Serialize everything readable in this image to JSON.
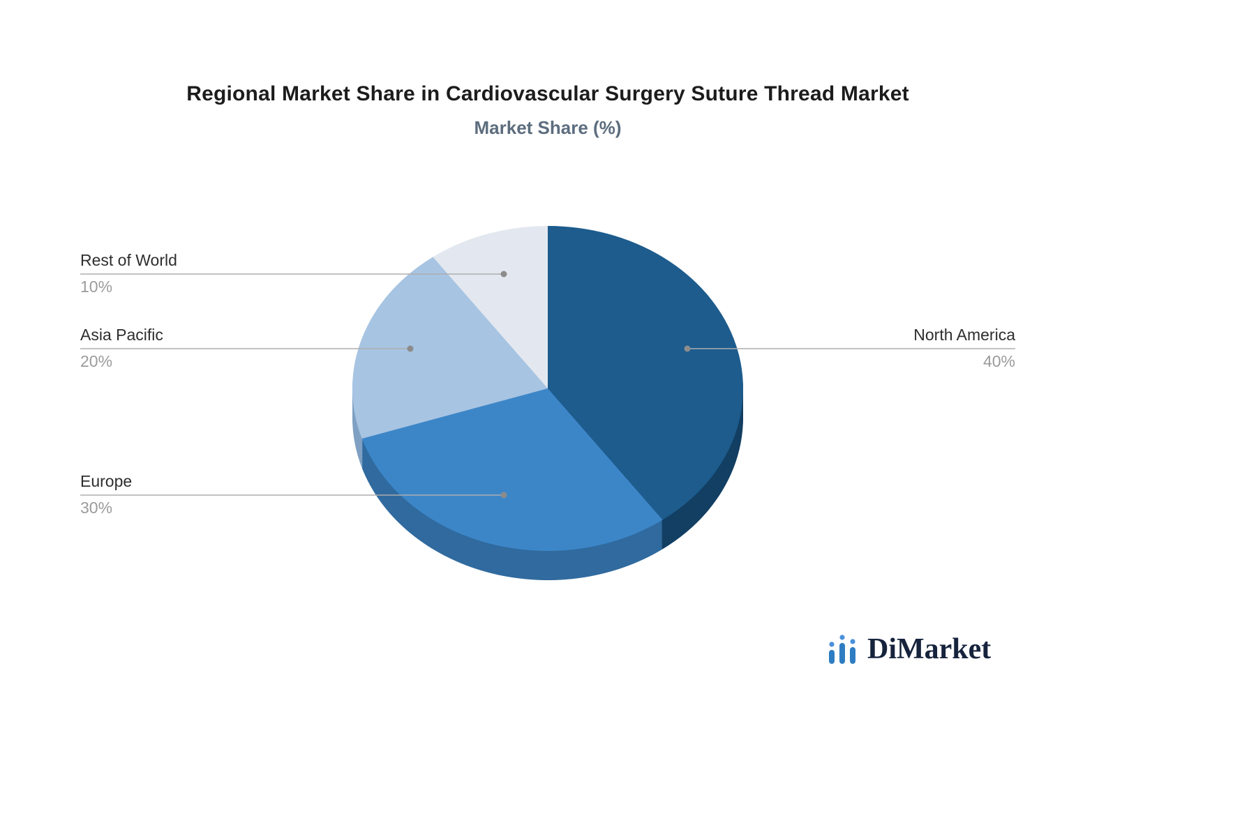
{
  "title": "Regional Market Share in Cardiovascular Surgery Suture Thread Market",
  "subtitle": "Market Share (%)",
  "chart_data": {
    "type": "pie",
    "title": "Regional Market Share in Cardiovascular Surgery Suture Thread Market",
    "subtitle": "Market Share (%)",
    "unit": "%",
    "direction": "clockwise",
    "start_angle_deg": 0,
    "style": "3d-extruded",
    "slices": [
      {
        "label": "North America",
        "value": 40,
        "display": "40%",
        "color": "#1d5c8d",
        "side_color": "#133f63"
      },
      {
        "label": "Europe",
        "value": 30,
        "display": "30%",
        "color": "#3c86c8",
        "side_color": "#306a9e"
      },
      {
        "label": "Asia Pacific",
        "value": 20,
        "display": "20%",
        "color": "#a7c4e2",
        "side_color": "#7fa0c2"
      },
      {
        "label": "Rest of World",
        "value": 10,
        "display": "10%",
        "color": "#e3e8f0",
        "side_color": "#bcc6d3"
      }
    ],
    "label_name_color": "#2e2e2e",
    "label_value_color": "#9b9b9b",
    "leader_line_color": "#adadad"
  },
  "branding": {
    "logo_text": "DiMarket",
    "logo_icon": "bar-chart-dots-icon",
    "logo_icon_color": "#2e7dc3",
    "logo_text_color": "#16233c"
  }
}
